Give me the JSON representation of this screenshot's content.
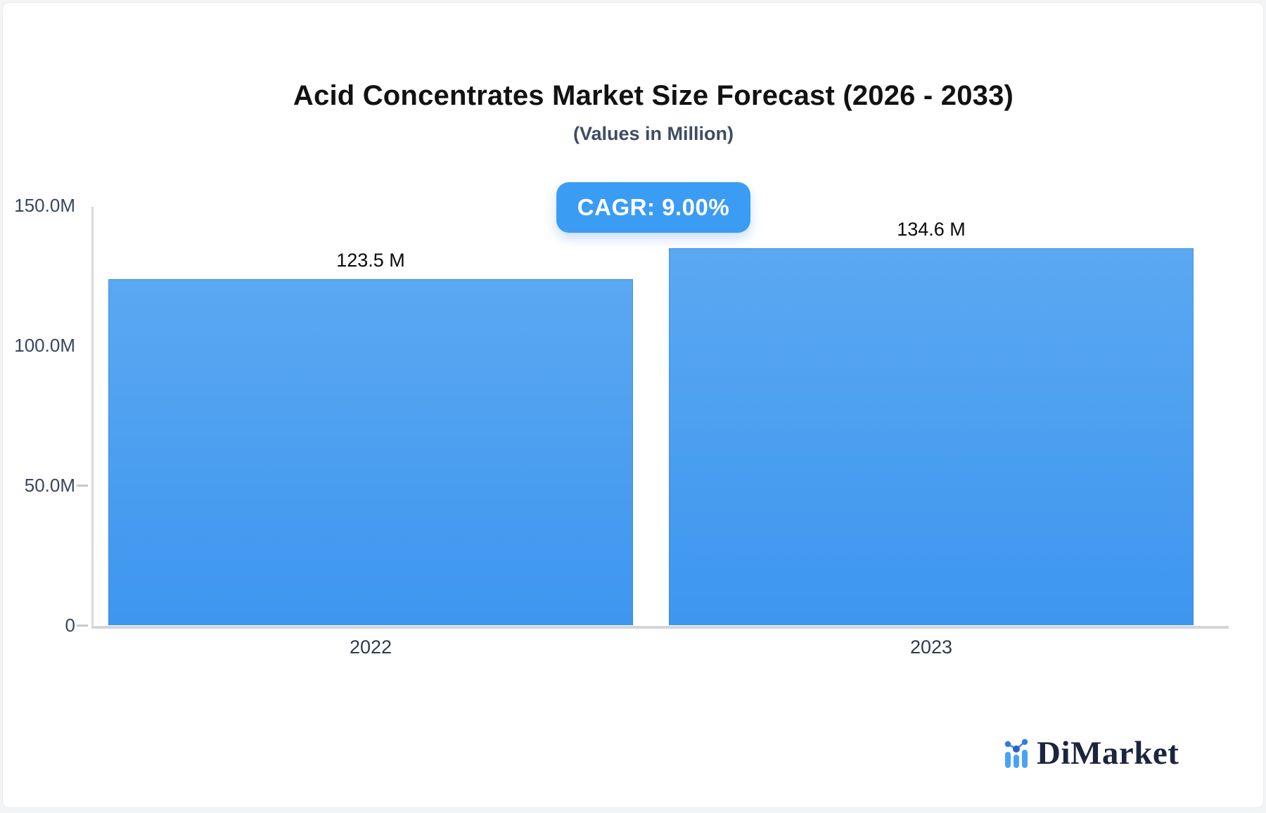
{
  "chart_data": {
    "type": "bar",
    "title": "Acid Concentrates Market Size Forecast (2026 - 2033)",
    "subtitle": "(Values in Million)",
    "badge_label": "CAGR: 9.00%",
    "categories": [
      "2022",
      "2023"
    ],
    "values": [
      123.5,
      134.6
    ],
    "value_labels": [
      "123.5 M",
      "134.6 M"
    ],
    "unit": "Million",
    "ylim": [
      0,
      150
    ],
    "yticks": [
      {
        "label": "150.0M",
        "value": 150
      },
      {
        "label": "100.0M",
        "value": 100
      },
      {
        "label": "50.0M",
        "value": 50
      },
      {
        "label": "0",
        "value": 0
      }
    ],
    "dash_tick_values": [
      50,
      0
    ],
    "grid": false,
    "legend": false,
    "colors": {
      "bar_gradient_top": "#5aa8f2",
      "bar_gradient_bottom": "#3e96ef",
      "badge_bg": "#3b9cf4",
      "badge_text": "#ffffff",
      "axis_line": "#d8dadd",
      "title_text": "#121212",
      "subtitle_text": "#3f4c63",
      "ytick_text": "#394661",
      "category_text": "#2f3a50"
    }
  },
  "logo": {
    "text": "DiMarket",
    "icon": "bar-chart-logo-icon",
    "text_color": "#1b2540",
    "icon_bar_color": "#4aa2f5",
    "icon_dot_color": "#2f7ce0"
  }
}
